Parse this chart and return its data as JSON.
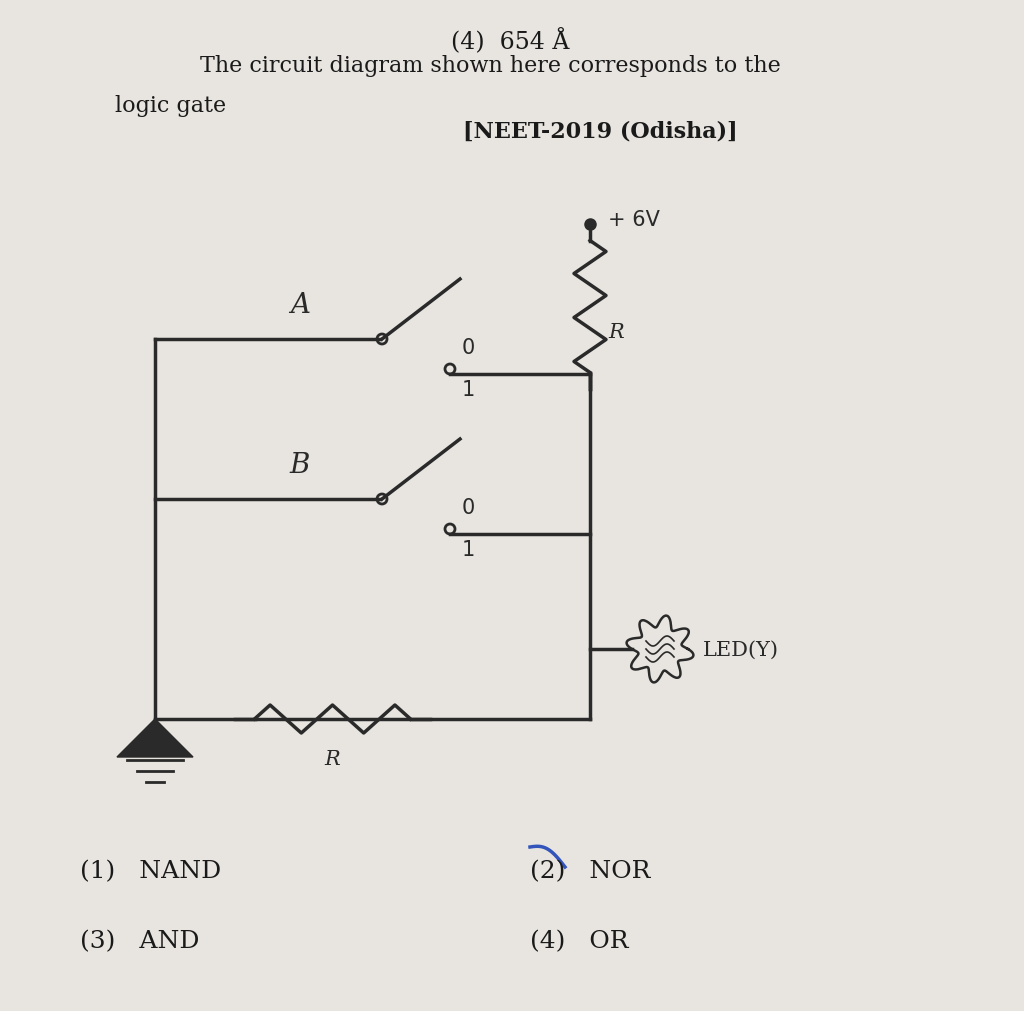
{
  "bg_color": "#e8e5e0",
  "line_color": "#2a2a2a",
  "text_color": "#1a1a1a",
  "blue_color": "#3355bb",
  "label_A": "A",
  "label_B": "B",
  "label_R_bottom": "R",
  "label_R_top": "R",
  "label_plus6V": "+ 6V",
  "label_0_A": "0",
  "label_1_A": "1",
  "label_0_B": "0",
  "label_1_B": "1",
  "label_LED": "LED(Y)",
  "title_part1": "(4)  654 Å",
  "title_line2": "The circuit diagram shown here corresponds to the",
  "title_line3": "logic gate",
  "title_neet": "[NEET-2019 (Odisha)]",
  "opt1": "(1)   NAND",
  "opt2": "(2)   NOR",
  "opt3": "(3)   AND",
  "opt4": "(4)   OR"
}
